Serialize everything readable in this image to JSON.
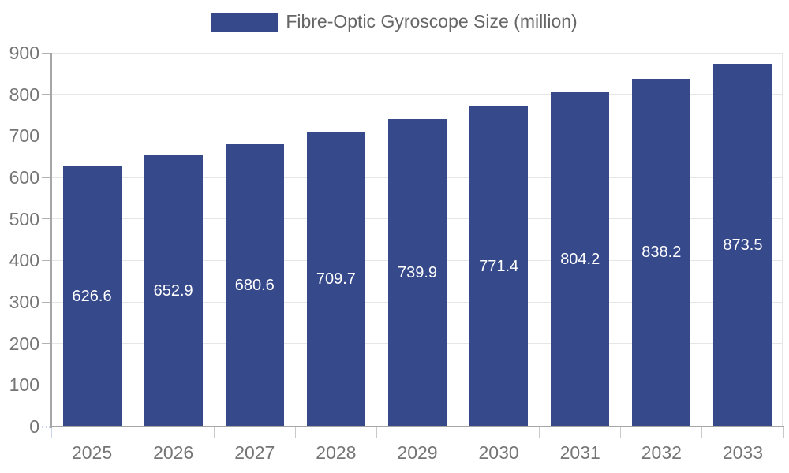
{
  "legend": {
    "label": "Fibre-Optic Gyroscope Size (million)"
  },
  "colors": {
    "bar": "#36498B",
    "grid": "#e6e6e6",
    "axis": "#a6a6a6",
    "tick_label": "#757575",
    "legend_text": "#666666",
    "value_label": "#ffffff",
    "zero_tick": "#c9d4ee"
  },
  "chart_data": {
    "type": "bar",
    "title": "Fibre-Optic Gyroscope Size (million)",
    "categories": [
      "2025",
      "2026",
      "2027",
      "2028",
      "2029",
      "2030",
      "2031",
      "2032",
      "2033"
    ],
    "values": [
      626.6,
      652.9,
      680.6,
      709.7,
      739.9,
      771.4,
      804.2,
      838.2,
      873.5
    ],
    "series": [
      {
        "name": "Fibre-Optic Gyroscope Size (million)",
        "values": [
          626.6,
          652.9,
          680.6,
          709.7,
          739.9,
          771.4,
          804.2,
          838.2,
          873.5
        ]
      }
    ],
    "value_labels": [
      "626.6",
      "652.9",
      "680.6",
      "709.7",
      "739.9",
      "771.4",
      "804.2",
      "838.2",
      "873.5"
    ],
    "xlabel": "",
    "ylabel": "",
    "ylim": [
      0,
      900
    ],
    "ytick_step": 100,
    "ytick_labels": [
      "0",
      "100",
      "200",
      "300",
      "400",
      "500",
      "600",
      "700",
      "800",
      "900"
    ],
    "grid": true,
    "legend_position": "top"
  }
}
